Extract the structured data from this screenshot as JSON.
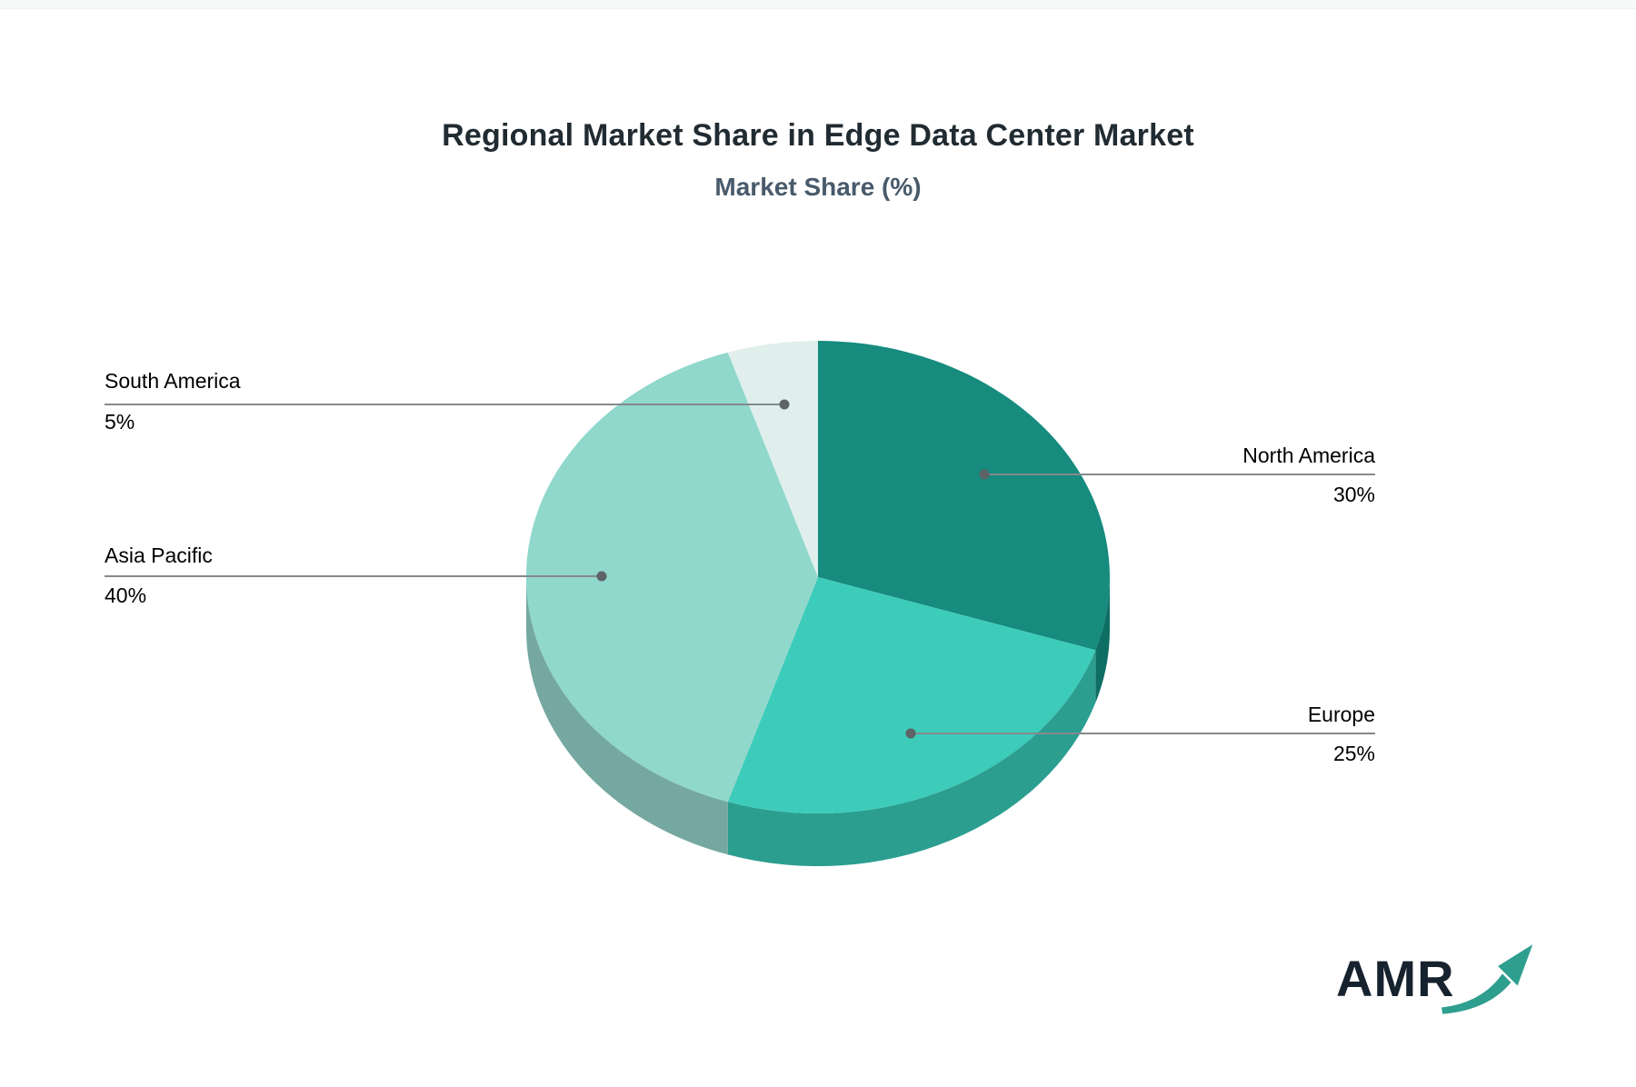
{
  "title": "Regional Market Share in Edge Data Center Market",
  "subtitle": "Market Share (%)",
  "logo": {
    "text": "AMR",
    "arrow_icon": "trend-up-arrow",
    "text_color": "#16222d",
    "arrow_color": "#2e9e8f"
  },
  "chart_data": {
    "type": "pie",
    "title": "Regional Market Share in Edge Data Center Market",
    "subtitle": "Market Share (%)",
    "unit": "%",
    "style": "3d",
    "rotation": "clockwise-from-top",
    "legend_position": "callout-labels",
    "slices": [
      {
        "label": "North America",
        "value": 30,
        "display": "30%",
        "color": "#168b7e",
        "side_color": "#0e6e63",
        "callout": "right"
      },
      {
        "label": "Europe",
        "value": 25,
        "display": "25%",
        "color": "#3dcbba",
        "side_color": "#2b9e90",
        "callout": "right"
      },
      {
        "label": "Asia Pacific",
        "value": 40,
        "display": "40%",
        "color": "#90d7cc",
        "side_color": "#75a8a0",
        "callout": "left"
      },
      {
        "label": "South America",
        "value": 5,
        "display": "5%",
        "color": "#e0efec",
        "side_color": "#bfd9d4",
        "callout": "left"
      }
    ],
    "colors": {
      "leader_line": "#85898c",
      "dot": "#5d6366",
      "label_text": "#343a3d",
      "percent_text": "#9aa1a6",
      "title_text": "#212b32",
      "subtitle_text": "#485a6b",
      "background": "#ffffff"
    }
  }
}
